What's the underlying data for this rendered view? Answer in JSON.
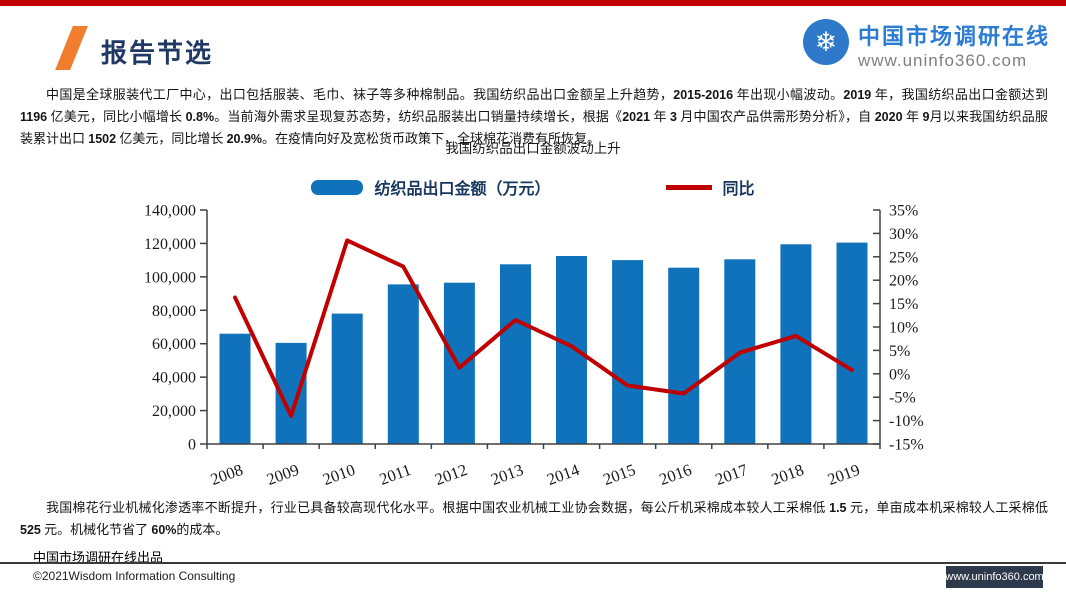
{
  "page": {
    "background": "#ffffff",
    "accent_bar_color": "#C00000"
  },
  "header": {
    "title": "报告节选",
    "slash_color": "#F07E2E",
    "title_color": "#1F3864",
    "logo": {
      "icon": "snowflake-icon",
      "icon_glyph": "❄",
      "icon_bg": "#2E79C9",
      "brand": "中国市场调研在线",
      "url": "www.uninfo360.com"
    }
  },
  "intro_paragraph": {
    "runs": [
      {
        "t": "中国是全球服装代工厂中心，出口包括服装、毛巾、袜子等多种棉制品。我国纺织品出口金额呈上升趋势，",
        "b": false
      },
      {
        "t": "2015-2016",
        "b": true
      },
      {
        "t": " 年出现小幅波动。",
        "b": false
      },
      {
        "t": "2019",
        "b": true
      },
      {
        "t": " 年，我国纺织品出口金额达到 ",
        "b": false
      },
      {
        "t": "1196",
        "b": true
      },
      {
        "t": " 亿美元，同比小幅增长 ",
        "b": false
      },
      {
        "t": "0.8%",
        "b": true
      },
      {
        "t": "。当前海外需求呈现复苏态势，纺织品服装出口销量持续增长，根据《",
        "b": false
      },
      {
        "t": "2021",
        "b": true
      },
      {
        "t": " 年 ",
        "b": false
      },
      {
        "t": "3",
        "b": true
      },
      {
        "t": " 月中国农产品供需形势分析》，自 ",
        "b": false
      },
      {
        "t": "2020",
        "b": true
      },
      {
        "t": " 年 ",
        "b": false
      },
      {
        "t": "9",
        "b": true
      },
      {
        "t": "月以来我国纺织品服装累计出口 ",
        "b": false
      },
      {
        "t": "1502",
        "b": true
      },
      {
        "t": " 亿美元，同比增长 ",
        "b": false
      },
      {
        "t": "20.9%",
        "b": true
      },
      {
        "t": "。在疫情向好及宽松货币政策下，全球棉花消费有所恢复。",
        "b": false
      }
    ]
  },
  "chart_data": {
    "type": "bar",
    "title": "我国纺织品出口金额波动上升",
    "categories": [
      "2008",
      "2009",
      "2010",
      "2011",
      "2012",
      "2013",
      "2014",
      "2015",
      "2016",
      "2017",
      "2018",
      "2019"
    ],
    "series": [
      {
        "name": "纺织品出口金额（万元）",
        "render": "bar",
        "axis": "left",
        "color": "#1072BA",
        "values": [
          66000,
          60500,
          78000,
          95500,
          96500,
          107500,
          112500,
          110000,
          105500,
          110500,
          119500,
          120500
        ]
      },
      {
        "name": "同比",
        "render": "line",
        "axis": "right",
        "color": "#C00000",
        "values": [
          16.3,
          -9.0,
          28.5,
          22.9,
          1.3,
          11.5,
          5.9,
          -2.5,
          -4.2,
          4.5,
          8.1,
          0.8
        ]
      }
    ],
    "left_axis": {
      "min": 0,
      "max": 140000,
      "labels": [
        "140,000",
        "120,000",
        "100,000",
        "80,000",
        "60,000",
        "40,000",
        "20,000",
        "0"
      ]
    },
    "right_axis": {
      "min": -15,
      "max": 35,
      "labels": [
        "35%",
        "30%",
        "25%",
        "20%",
        "15%",
        "10%",
        "5%",
        "0%",
        "-5%",
        "-10%",
        "-15%"
      ]
    },
    "grid": false,
    "legend_position": "top",
    "x_label_rotation": -20
  },
  "body_paragraph": {
    "runs": [
      {
        "t": "我国棉花行业机械化渗透率不断提升，行业已具备较高现代化水平。根据中国农业机械工业协会数据，每公斤机采棉成本较人工采棉低 ",
        "b": false
      },
      {
        "t": "1.5",
        "b": true
      },
      {
        "t": " 元，单亩成本机采棉较人工采棉低 ",
        "b": false
      },
      {
        "t": "525",
        "b": true
      },
      {
        "t": " 元。机械化节省了 ",
        "b": false
      },
      {
        "t": "60%",
        "b": true
      },
      {
        "t": "的成本。",
        "b": false
      }
    ]
  },
  "footer": {
    "produced_by": "中国市场调研在线出品",
    "copyright": "©2021Wisdom Information Consulting",
    "site_badge": "www.uninfo360.com",
    "badge_color": "#2C3A4B"
  }
}
